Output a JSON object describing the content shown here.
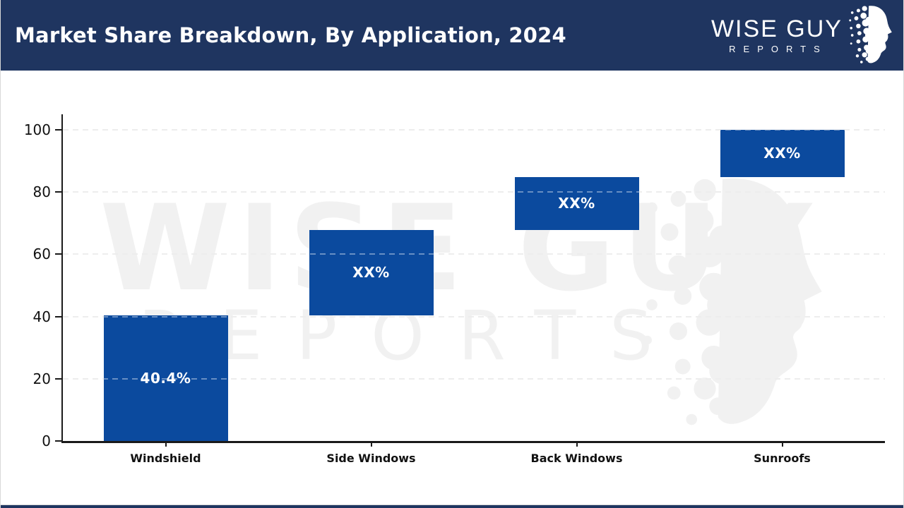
{
  "header": {
    "title": "Market Share Breakdown, By Application, 2024",
    "logo": {
      "wordmark": "WISE GUY",
      "tagline": "REPORTS"
    }
  },
  "watermark": {
    "wordmark": "WISE GUY",
    "tagline": "REPORTS"
  },
  "chart_data": {
    "type": "bar",
    "subtype": "stacked-waterfall",
    "title": "Market Share Breakdown, By Application, 2024",
    "categories": [
      "Windshield",
      "Side Windows",
      "Back Windows",
      "Sunroofs"
    ],
    "segments": [
      {
        "category": "Windshield",
        "start": 0,
        "end": 40.4,
        "label": "40.4%"
      },
      {
        "category": "Side Windows",
        "start": 40.4,
        "end": 67.9,
        "label": "XX%"
      },
      {
        "category": "Back Windows",
        "start": 67.9,
        "end": 84.9,
        "label": "XX%"
      },
      {
        "category": "Sunroofs",
        "start": 84.9,
        "end": 100.0,
        "label": "XX%"
      }
    ],
    "xlabel": "",
    "ylabel": "",
    "ylim": [
      0,
      105
    ],
    "yticks": [
      0,
      20,
      40,
      60,
      80,
      100
    ],
    "grid": "horizontal-dashed",
    "legend": "none",
    "bar_color": "#0b4a9e",
    "bar_label_color": "#ffffff",
    "axis_color": "#1a1a1a",
    "gridline_color": "#e2e2e2"
  },
  "colors": {
    "header_bg": "#1f3560",
    "page_bg": "#ffffff",
    "watermark": "#f1f1f1",
    "footer_bar": "#1f3560"
  }
}
